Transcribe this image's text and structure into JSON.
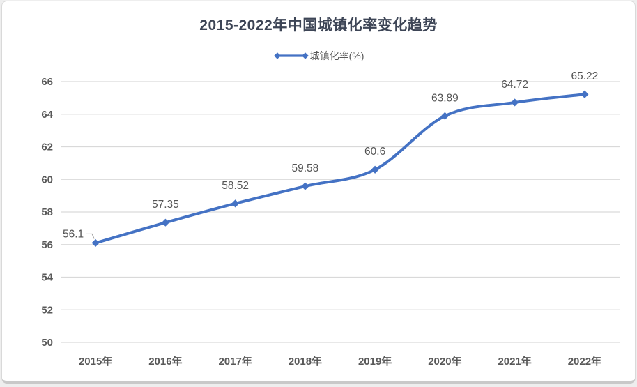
{
  "chart_data": {
    "type": "line",
    "title": "2015-2022年中国城镇化率变化趋势",
    "legend": {
      "label": "城镇化率(%)",
      "position": "top"
    },
    "categories": [
      "2015年",
      "2016年",
      "2017年",
      "2018年",
      "2019年",
      "2020年",
      "2021年",
      "2022年"
    ],
    "series": [
      {
        "name": "城镇化率(%)",
        "values": [
          56.1,
          57.35,
          58.52,
          59.58,
          60.6,
          63.89,
          64.72,
          65.22
        ],
        "labels": [
          "56.1",
          "57.35",
          "58.52",
          "59.58",
          "60.6",
          "63.89",
          "64.72",
          "65.22"
        ]
      }
    ],
    "xlabel": "",
    "ylabel": "",
    "ylim": [
      50,
      66
    ],
    "yticks": [
      50,
      52,
      54,
      56,
      58,
      60,
      62,
      64,
      66
    ],
    "grid": "horizontal",
    "smooth": true,
    "marker": "diamond",
    "first_label_has_leader": true,
    "colors": {
      "line": "#4472C4",
      "marker": "#4472C4",
      "gridline": "#D9D9D9",
      "axis_text": "#595959",
      "data_label": "#545454",
      "title_text": "#3D4556",
      "leader_line": "#A6A6A6",
      "background": "#FFFFFF"
    }
  }
}
